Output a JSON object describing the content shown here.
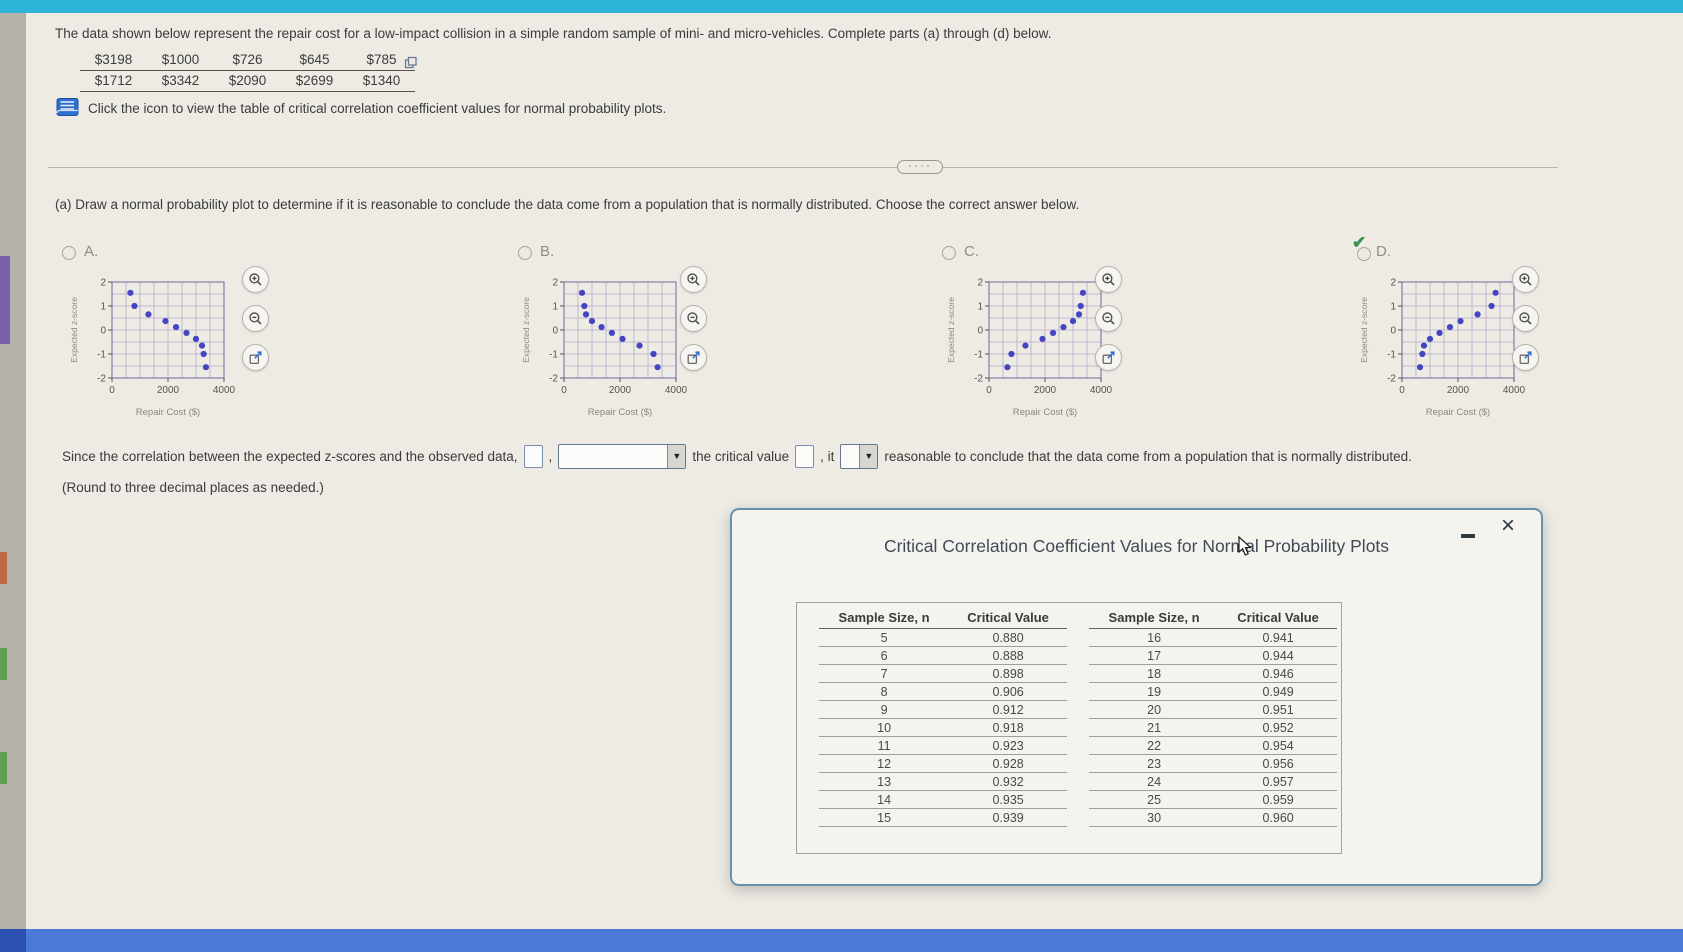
{
  "colors": {
    "topbar": "#2fb4d9",
    "bottombar": "#4b79d6",
    "bottombar_corner": "#2a50b0",
    "purple_tab": "#7b5fa9",
    "left_mark_orange": "#c06a45",
    "left_mark_green": "#5f9e52",
    "accent_blue": "#2f6fd0",
    "selected_green": "#3f8f4f",
    "plot_dot": "#4345c2",
    "plot_grid": "#b3abca",
    "modal_border": "#6792ad"
  },
  "glyphs": {
    "dropdown": "▼",
    "close": "×",
    "dots": "····",
    "check": "✔"
  },
  "problem": {
    "title": "The data shown below represent the repair cost for a low-impact collision in a simple random sample of mini- and micro-vehicles. Complete parts (a) through (d) below.",
    "cost_rows": [
      [
        "$3198",
        "$1000",
        "$726",
        "$645",
        "$785"
      ],
      [
        "$1712",
        "$3342",
        "$2090",
        "$2699",
        "$1340"
      ]
    ],
    "note": "Click the icon to view the table of critical correlation coefficient values for normal probability plots.",
    "part_a_prompt": "(a) Draw a normal probability plot to determine if it is reasonable to conclude the data come from a population that is normally distributed. Choose the correct answer below."
  },
  "options": [
    {
      "label": "A.",
      "selected": false
    },
    {
      "label": "B.",
      "selected": false
    },
    {
      "label": "C.",
      "selected": false
    },
    {
      "label": "D.",
      "selected": true
    }
  ],
  "chart_data": {
    "type": "scatter",
    "xlabel": "Repair Cost ($)",
    "ylabel": "Expected z-score",
    "xlim": [
      0,
      4000
    ],
    "ylim": [
      -2,
      2
    ],
    "xticks": [
      0,
      2000,
      4000
    ],
    "yticks": [
      2,
      1,
      0,
      -1,
      -2
    ],
    "grid_step_x": 500,
    "grid_step_y": 0.5,
    "series": [
      {
        "option": "A",
        "points": [
          [
            658,
            1.55
          ],
          [
            802,
            1.0
          ],
          [
            1301,
            0.65
          ],
          [
            1910,
            0.37
          ],
          [
            2288,
            0.12
          ],
          [
            2660,
            -0.12
          ],
          [
            3000,
            -0.37
          ],
          [
            3215,
            -0.65
          ],
          [
            3274,
            -1.0
          ],
          [
            3355,
            -1.55
          ]
        ]
      },
      {
        "option": "B",
        "points": [
          [
            645,
            1.55
          ],
          [
            726,
            1.0
          ],
          [
            785,
            0.65
          ],
          [
            1000,
            0.37
          ],
          [
            1340,
            0.12
          ],
          [
            1712,
            -0.12
          ],
          [
            2090,
            -0.37
          ],
          [
            2699,
            -0.65
          ],
          [
            3198,
            -1.0
          ],
          [
            3342,
            -1.55
          ]
        ]
      },
      {
        "option": "C",
        "points": [
          [
            658,
            -1.55
          ],
          [
            802,
            -1.0
          ],
          [
            1301,
            -0.65
          ],
          [
            1910,
            -0.37
          ],
          [
            2288,
            -0.12
          ],
          [
            2660,
            0.12
          ],
          [
            3000,
            0.37
          ],
          [
            3215,
            0.65
          ],
          [
            3274,
            1.0
          ],
          [
            3355,
            1.55
          ]
        ]
      },
      {
        "option": "D",
        "points": [
          [
            645,
            -1.55
          ],
          [
            726,
            -1.0
          ],
          [
            785,
            -0.65
          ],
          [
            1000,
            -0.37
          ],
          [
            1340,
            -0.12
          ],
          [
            1712,
            0.12
          ],
          [
            2090,
            0.37
          ],
          [
            2699,
            0.65
          ],
          [
            3198,
            1.0
          ],
          [
            3342,
            1.55
          ]
        ]
      }
    ]
  },
  "answer": {
    "text_before": "Since the correlation between the expected z-scores and the observed data,",
    "input1": "",
    "separator": ",",
    "dropdown1": "",
    "text_mid1": "the critical value",
    "input2": "",
    "text_mid2": ", it",
    "dropdown2": "",
    "text_after": "reasonable to conclude that the data come from a population that is normally distributed.",
    "round_note": "(Round to three decimal places as needed.)"
  },
  "modal": {
    "title": "Critical Correlation Coefficient Values for Normal Probability Plots",
    "tables": [
      {
        "headers": [
          "Sample Size, n",
          "Critical Value"
        ],
        "rows": [
          [
            "5",
            "0.880"
          ],
          [
            "6",
            "0.888"
          ],
          [
            "7",
            "0.898"
          ],
          [
            "8",
            "0.906"
          ],
          [
            "9",
            "0.912"
          ],
          [
            "10",
            "0.918"
          ],
          [
            "11",
            "0.923"
          ],
          [
            "12",
            "0.928"
          ],
          [
            "13",
            "0.932"
          ],
          [
            "14",
            "0.935"
          ],
          [
            "15",
            "0.939"
          ]
        ]
      },
      {
        "headers": [
          "Sample Size, n",
          "Critical Value"
        ],
        "rows": [
          [
            "16",
            "0.941"
          ],
          [
            "17",
            "0.944"
          ],
          [
            "18",
            "0.946"
          ],
          [
            "19",
            "0.949"
          ],
          [
            "20",
            "0.951"
          ],
          [
            "21",
            "0.952"
          ],
          [
            "22",
            "0.954"
          ],
          [
            "23",
            "0.956"
          ],
          [
            "24",
            "0.957"
          ],
          [
            "25",
            "0.959"
          ],
          [
            "30",
            "0.960"
          ]
        ]
      }
    ]
  }
}
